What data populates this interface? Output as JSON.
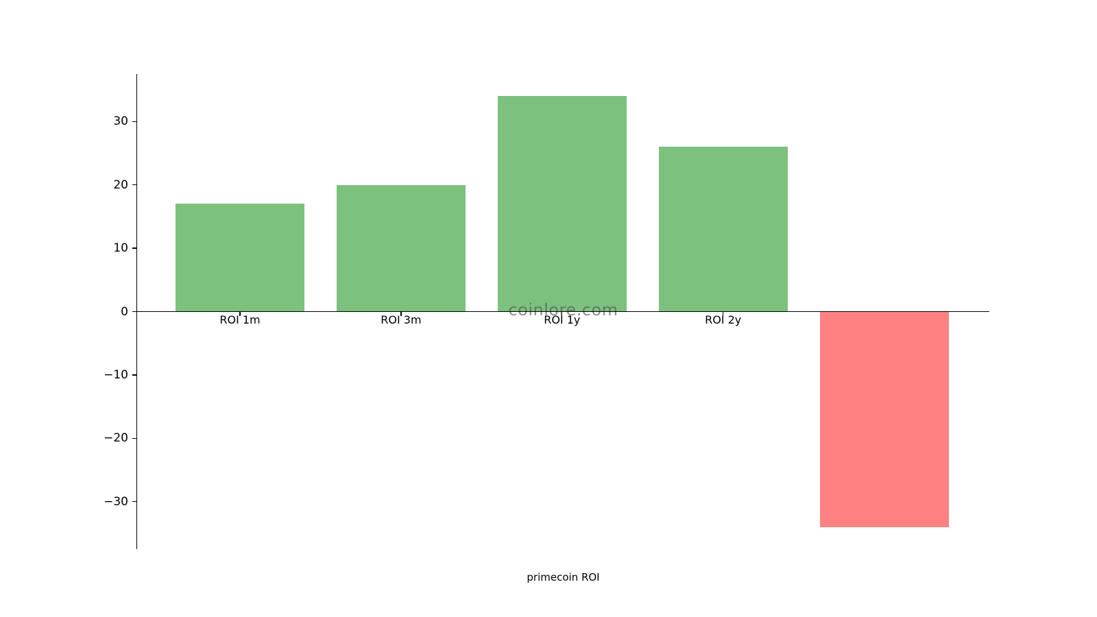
{
  "chart_data": {
    "type": "bar",
    "categories": [
      "ROI 1m",
      "ROI 3m",
      "ROI 1y",
      "ROI 2y",
      ""
    ],
    "values": [
      17,
      20,
      34,
      26,
      -34
    ],
    "title": "primecoin ROI",
    "xlabel": "",
    "ylabel": "",
    "ylim": [
      -37.5,
      37.5
    ],
    "yticks": [
      30,
      20,
      10,
      0,
      -10,
      -20,
      -30
    ],
    "ytick_labels": [
      "30",
      "20",
      "10",
      "0",
      "−10",
      "−20",
      "−30"
    ],
    "grid": false,
    "legend_position": "none",
    "bar_colors": {
      "positive": "#7cc17e",
      "negative": "#ff8181"
    },
    "axis_color": "#000000",
    "text_color": "#000000"
  },
  "watermark": {
    "text": "coinlore.com",
    "color": "#555555"
  }
}
